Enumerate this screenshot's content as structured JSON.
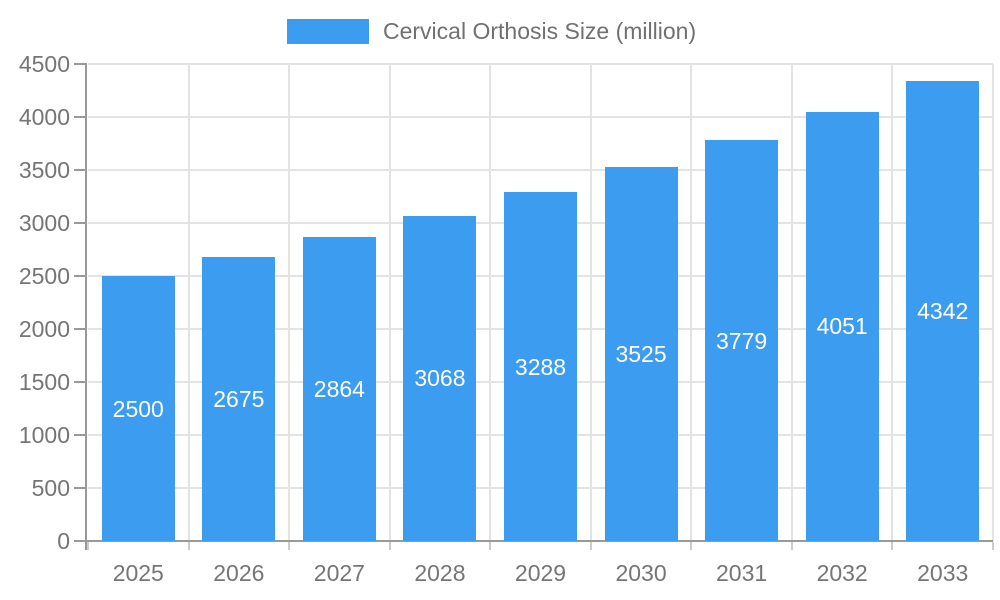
{
  "chart_data": {
    "type": "bar",
    "title": "Cervical Orthosis Size (million)",
    "legend": {
      "position": "top",
      "entries": [
        "Cervical Orthosis Size (million)"
      ]
    },
    "categories": [
      "2025",
      "2026",
      "2027",
      "2028",
      "2029",
      "2030",
      "2031",
      "2032",
      "2033"
    ],
    "values": [
      2500,
      2675,
      2864,
      3068,
      3288,
      3525,
      3779,
      4051,
      4342
    ],
    "xlabel": "",
    "ylabel": "",
    "ylim": [
      0,
      4500
    ],
    "yticks": [
      0,
      500,
      1000,
      1500,
      2000,
      2500,
      3000,
      3500,
      4000,
      4500
    ],
    "grid": true,
    "data_labels": "inside-center",
    "colors": {
      "bar": "#3c9cef",
      "bar_label": "#ffffff",
      "axis_label": "#757575",
      "legend_text": "#707070",
      "axis_line": "#999999",
      "gridline": "#e3e3e3",
      "x_tick": "#cccccc",
      "background": "#ffffff"
    }
  }
}
